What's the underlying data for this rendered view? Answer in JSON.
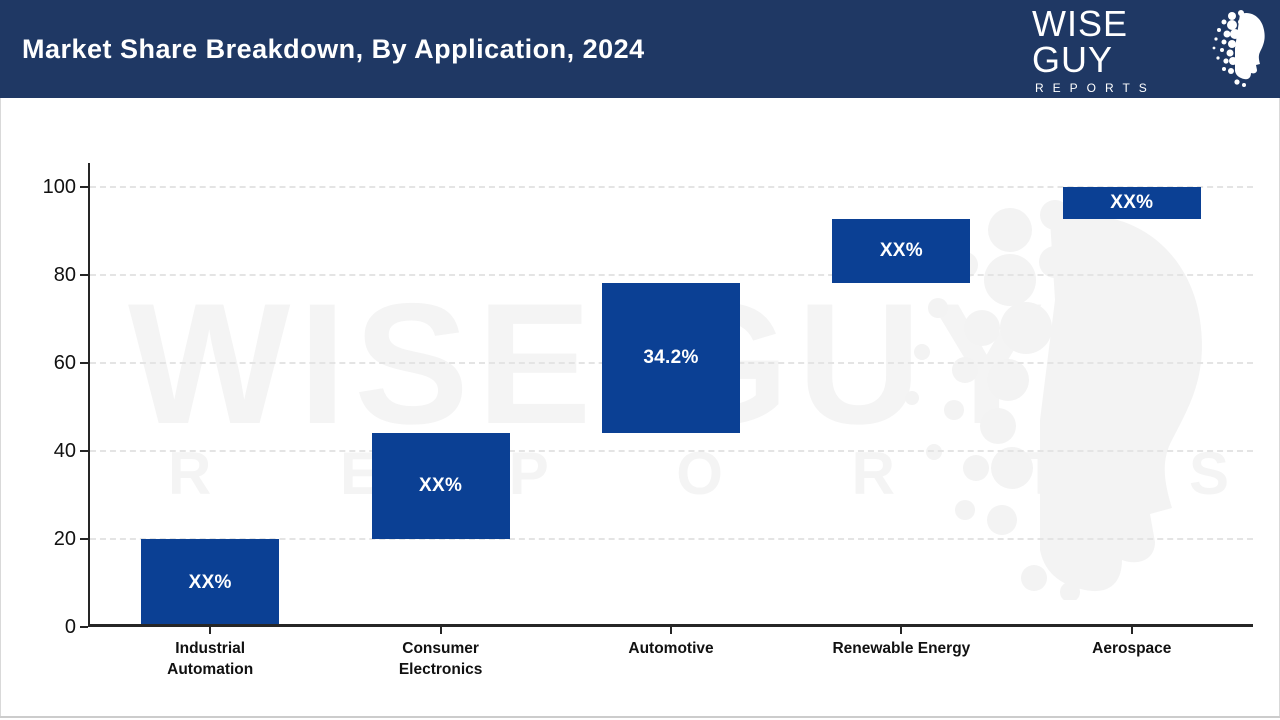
{
  "header": {
    "title": "Market Share Breakdown, By Application, 2024",
    "bg_color": "#1f3864",
    "logo": {
      "line1": "WISE GUY",
      "line2": "REPORTS"
    }
  },
  "watermark": {
    "line1": "WISE GUY",
    "line2": "R E P O R T S"
  },
  "chart_data": {
    "type": "bar",
    "subtype": "waterfall",
    "title": "Market Share Breakdown, By Application, 2024",
    "categories": [
      [
        "Industrial",
        "Automation"
      ],
      [
        "Consumer",
        "Electronics"
      ],
      [
        "Automotive"
      ],
      [
        "Renewable Energy"
      ],
      [
        "Aerospace"
      ]
    ],
    "series": [
      {
        "name": "Market Share %",
        "segments": [
          {
            "start": 0,
            "end": 20,
            "increment": 20,
            "label": "XX%"
          },
          {
            "start": 20,
            "end": 44,
            "increment": 24,
            "label": "XX%"
          },
          {
            "start": 44,
            "end": 78.2,
            "increment": 34.2,
            "label": "34.2%"
          },
          {
            "start": 78.2,
            "end": 92.7,
            "increment": 14.5,
            "label": "XX%"
          },
          {
            "start": 92.7,
            "end": 100,
            "increment": 7.3,
            "label": "XX%"
          }
        ]
      }
    ],
    "yticks": [
      0,
      20,
      40,
      60,
      80,
      100
    ],
    "ylim": [
      0,
      105
    ],
    "xlabel": "",
    "ylabel": "",
    "grid": "dashed-horizontal",
    "legend": "none",
    "bar_color": "#0b4094",
    "bar_label_color": "#ffffff",
    "axis_color": "#262626",
    "gridline_color": "#e4e4e4"
  }
}
